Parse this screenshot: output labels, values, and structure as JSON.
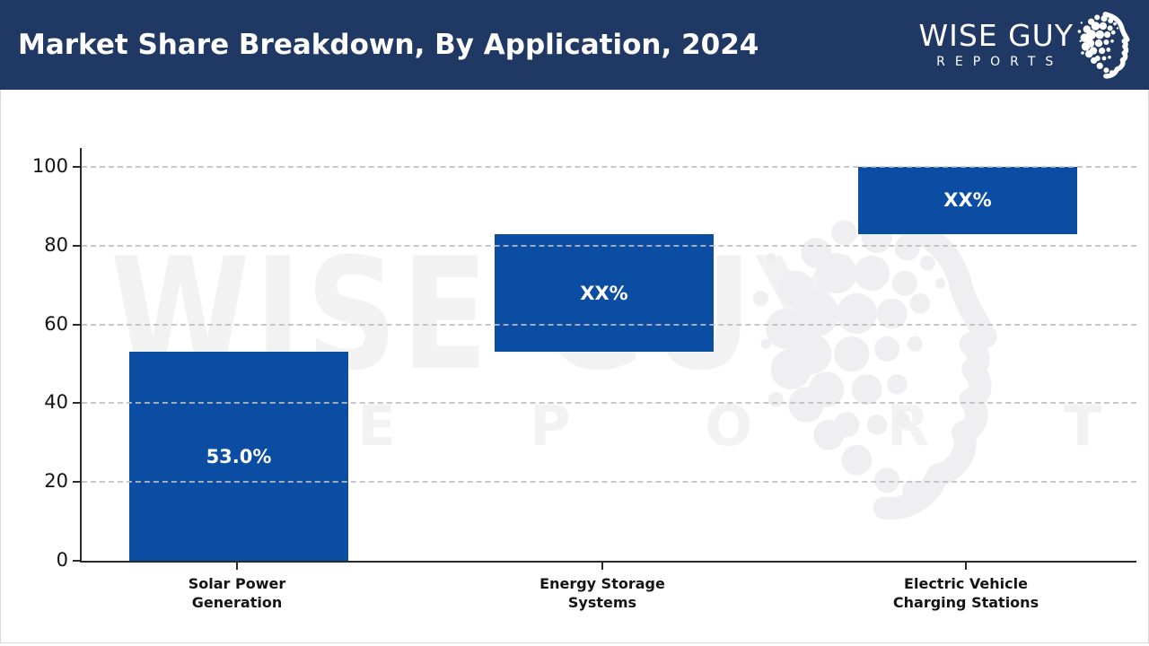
{
  "header": {
    "title": "Market Share Breakdown, By Application, 2024",
    "bg_color": "#203864",
    "logo": {
      "name": "WISE GUY",
      "sub": "REPORTS"
    }
  },
  "watermark": {
    "name": "WISE GUY",
    "sub": "R E P O R T S"
  },
  "chart_data": {
    "type": "bar",
    "subtype": "waterfall",
    "title": "Market Share Breakdown, By Application, 2024",
    "categories": [
      "Solar Power\nGeneration",
      "Energy Storage\nSystems",
      "Electric Vehicle\nCharging Stations"
    ],
    "series": [
      {
        "name": "Solar Power Generation",
        "start": 0,
        "end": 53,
        "value": 53.0,
        "label": "53.0%"
      },
      {
        "name": "Energy Storage Systems",
        "start": 53,
        "end": 83,
        "value": 30.0,
        "label": "XX%"
      },
      {
        "name": "Electric Vehicle Charging Stations",
        "start": 83,
        "end": 100,
        "value": 17.0,
        "label": "XX%"
      }
    ],
    "ylim": [
      0,
      100
    ],
    "yticks": [
      0,
      20,
      40,
      60,
      80,
      100
    ],
    "grid": "dashed-horizontal",
    "legend": "none",
    "bar_color": "#0b4da2",
    "bar_label_color": "#ffffff",
    "axis_color": "#2a2a2a"
  }
}
